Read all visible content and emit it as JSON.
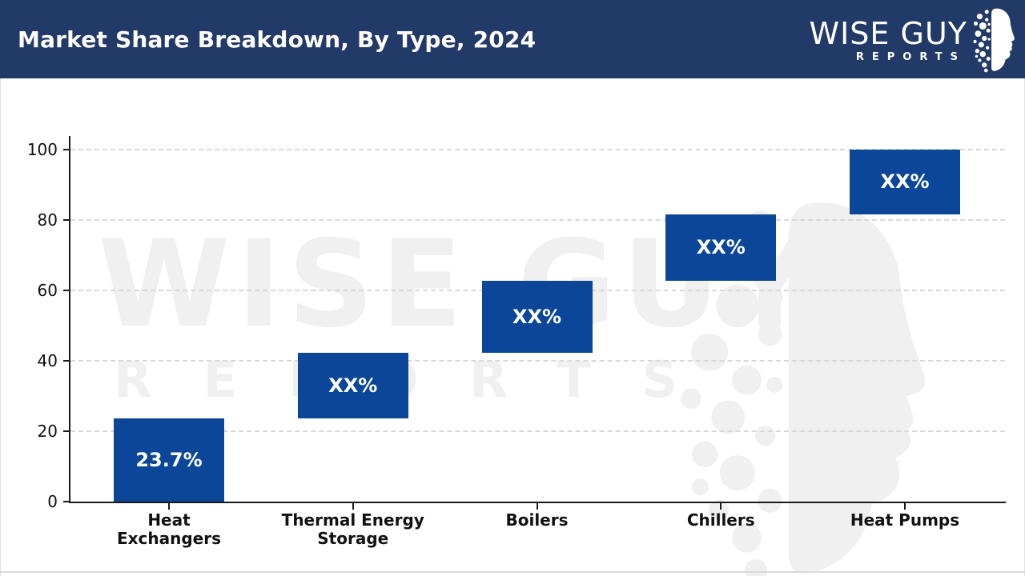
{
  "header": {
    "title": "Market Share Breakdown, By Type, 2024",
    "logo": {
      "wordmark": "WISE GUY",
      "subtext": "REPORTS"
    }
  },
  "watermark": {
    "wordmark": "WISE GUY",
    "subtext": "REPORTS"
  },
  "colors": {
    "header_bg": "#223A67",
    "bar_fill": "#0B4699",
    "bar_label_text": "#FFFFFF",
    "axis": "#1A1A1A",
    "gridline": "#D9D9D9",
    "tick_text": "#111111",
    "watermark": "#F0F0F1"
  },
  "chart_data": {
    "type": "bar",
    "subtype": "waterfall",
    "title": "Market Share Breakdown, By Type, 2024",
    "xlabel": "",
    "ylabel": "",
    "ylim": [
      0,
      100
    ],
    "yticks": [
      0,
      20,
      40,
      60,
      80,
      100
    ],
    "grid": "horizontal-dashed",
    "legend": "none",
    "categories": [
      "Heat Exchangers",
      "Thermal Energy Storage",
      "Boilers",
      "Chillers",
      "Heat Pumps"
    ],
    "segments": [
      {
        "category": "Heat Exchangers",
        "start": 0,
        "end": 23.7,
        "label": "23.7%"
      },
      {
        "category": "Thermal Energy Storage",
        "start": 23.7,
        "end": 42.3,
        "label": "XX%"
      },
      {
        "category": "Boilers",
        "start": 42.3,
        "end": 62.7,
        "label": "XX%"
      },
      {
        "category": "Chillers",
        "start": 62.7,
        "end": 81.7,
        "label": "XX%"
      },
      {
        "category": "Heat Pumps",
        "start": 81.7,
        "end": 100,
        "label": "XX%"
      }
    ]
  }
}
